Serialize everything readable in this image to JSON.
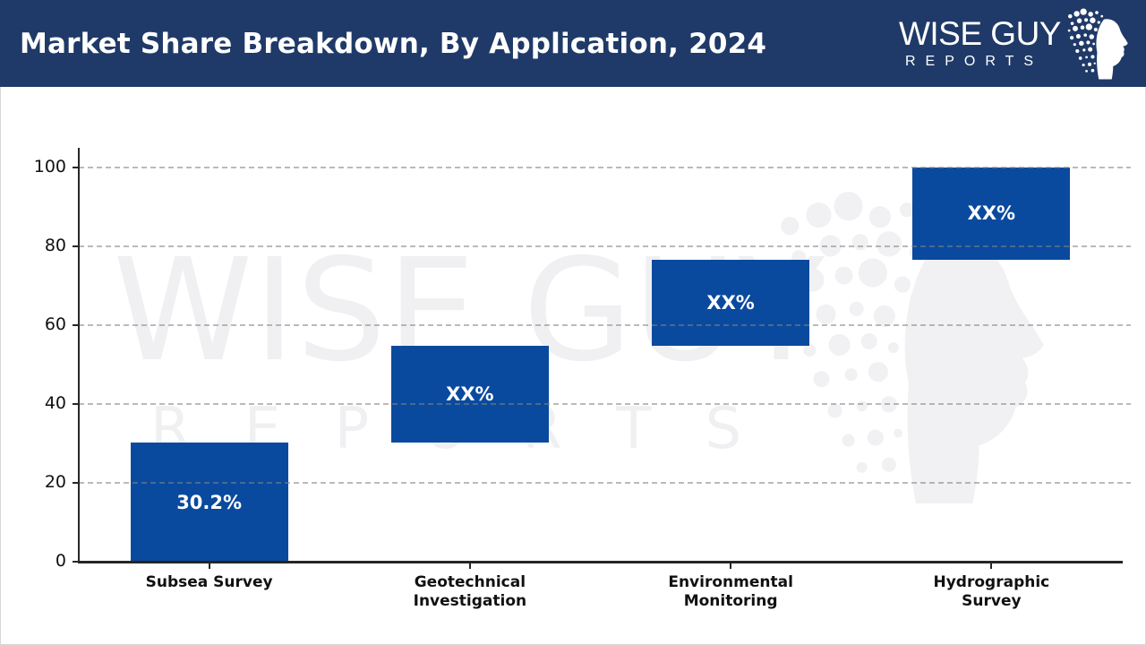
{
  "header": {
    "title": "Market Share Breakdown, By Application, 2024",
    "logo": {
      "line1": "WISE GUY",
      "line2": "REPORTS"
    }
  },
  "watermark": {
    "line1": "WISE GUY",
    "line2": "R E P O R T S"
  },
  "chart_data": {
    "type": "bar",
    "subtype": "waterfall",
    "title": "Market Share Breakdown, By Application, 2024",
    "categories": [
      "Subsea Survey",
      "Geotechnical Investigation",
      "Environmental Monitoring",
      "Hydrographic Survey"
    ],
    "segments": [
      {
        "category": "Subsea Survey",
        "start": 0,
        "end": 30.2,
        "label": "30.2%"
      },
      {
        "category": "Geotechnical Investigation",
        "start": 30.2,
        "end": 54.7,
        "label": "XX%"
      },
      {
        "category": "Environmental Monitoring",
        "start": 54.7,
        "end": 76.6,
        "label": "XX%"
      },
      {
        "category": "Hydrographic Survey",
        "start": 76.6,
        "end": 100,
        "label": "XX%"
      }
    ],
    "ylim": [
      0,
      100
    ],
    "yticks": [
      0,
      20,
      40,
      60,
      80,
      100
    ],
    "grid": "horizontal-dashed",
    "legend": "none",
    "bar_color": "#0a4a9e",
    "bar_label_color": "#ffffff"
  },
  "colors": {
    "header_bg": "#1f3a68",
    "bar": "#0a4a9e",
    "axis": "#262626",
    "gridline": "#c8c8c8",
    "watermark": "#f0f0f3",
    "panel_border": "#d8d8d8",
    "text": "#111111"
  }
}
